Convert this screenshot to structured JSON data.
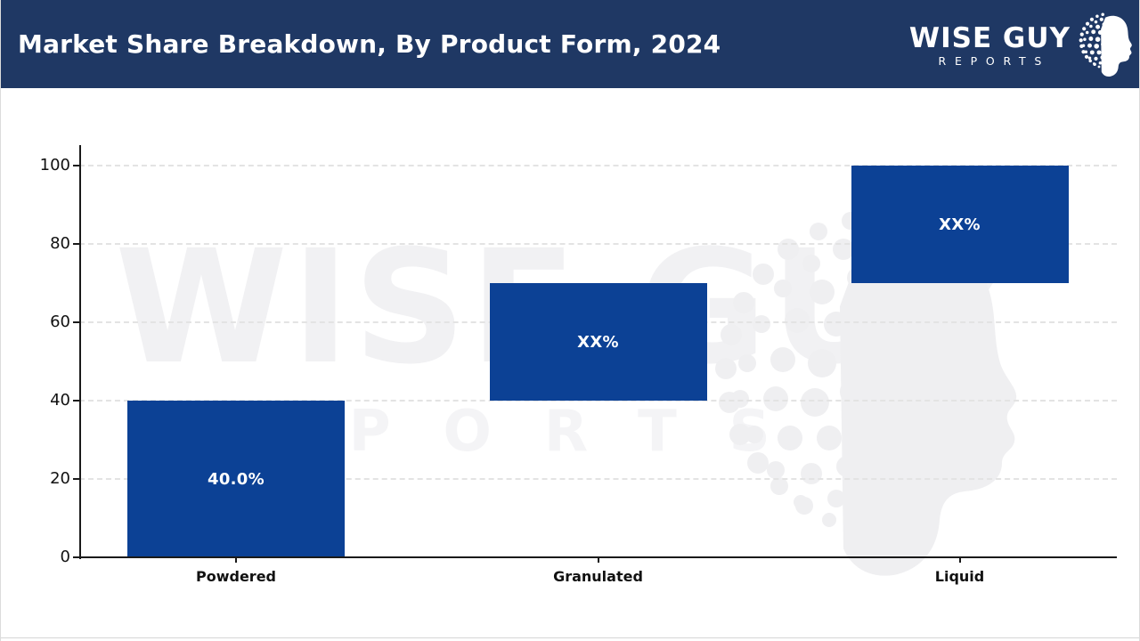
{
  "header": {
    "title": "Market Share Breakdown, By Product Form, 2024",
    "background_color": "#1f3864",
    "logo": {
      "wordmark": "WISE GUY",
      "subtext": "REPORTS"
    }
  },
  "watermark": {
    "wordmark": "WISE GUY",
    "subtext": "REPORTS"
  },
  "chart_data": {
    "type": "bar",
    "subtype": "floating-segment-waterfall",
    "title": "Market Share Breakdown, By Product Form, 2024",
    "categories": [
      "Powdered",
      "Granulated",
      "Liquid"
    ],
    "series": [
      {
        "name": "Market share by product form",
        "segments": [
          {
            "category": "Powdered",
            "from": 0,
            "to": 40,
            "label": "40.0%"
          },
          {
            "category": "Granulated",
            "from": 40,
            "to": 70,
            "label": "XX%"
          },
          {
            "category": "Liquid",
            "from": 70,
            "to": 100,
            "label": "XX%"
          }
        ]
      }
    ],
    "xlabel": "",
    "ylabel": "",
    "yticks": [
      0,
      20,
      40,
      60,
      80,
      100
    ],
    "ylim": [
      0,
      105
    ],
    "grid": {
      "horizontal": true,
      "style": "dashed",
      "color": "#e3e3e3"
    },
    "legend": "none",
    "bar_color": "#0c4195",
    "bar_label_color": "#ffffff",
    "axis_color": "#1a1a1a"
  }
}
